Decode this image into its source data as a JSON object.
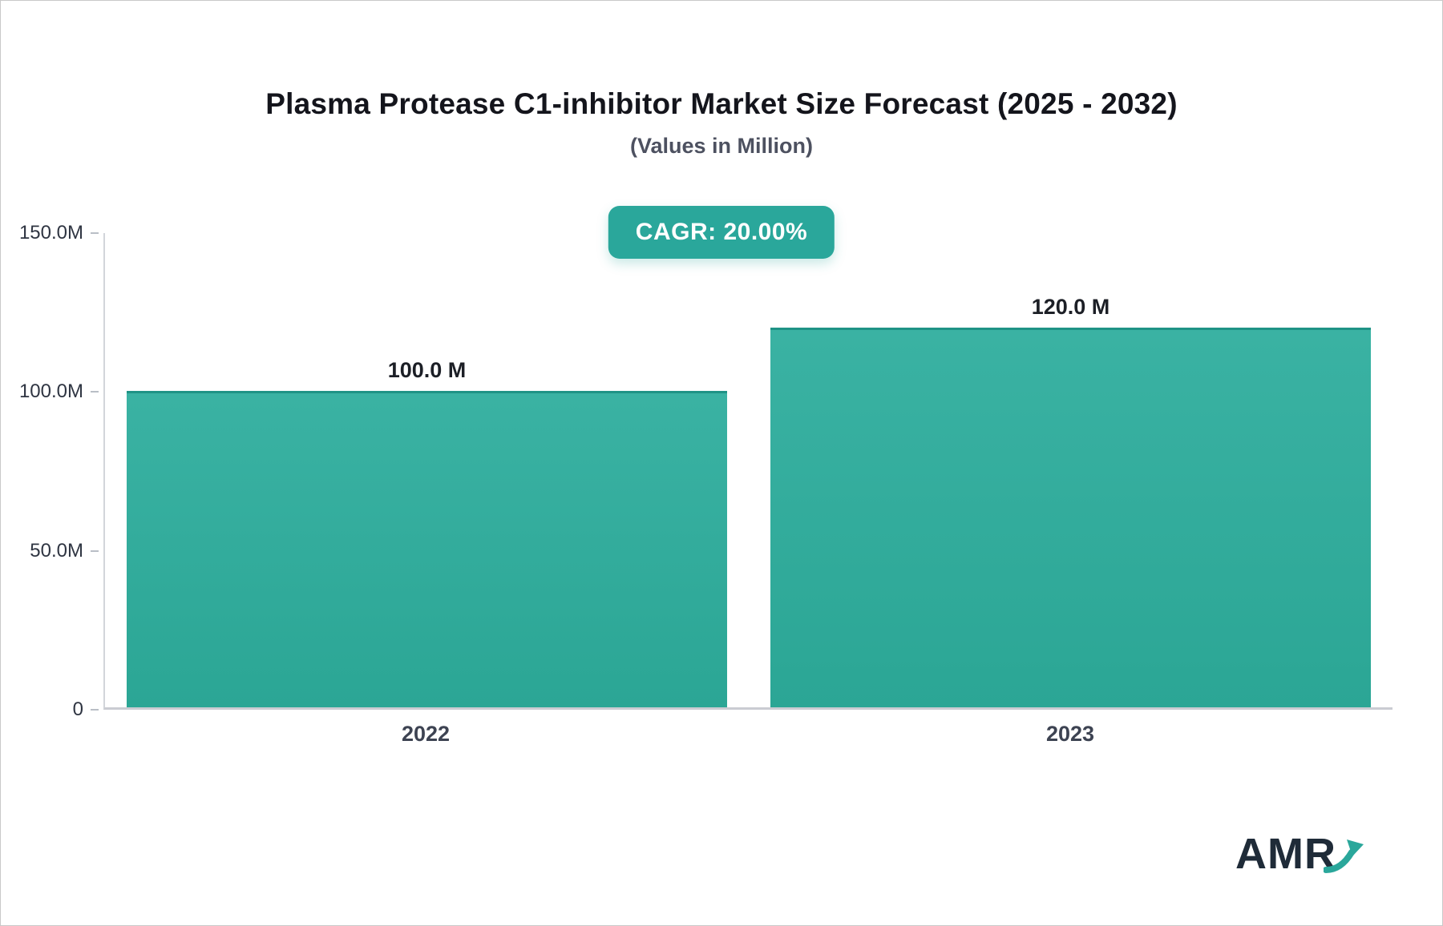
{
  "chart_data": {
    "type": "bar",
    "title": "Plasma Protease C1-inhibitor Market Size Forecast (2025 - 2032)",
    "subtitle": "(Values in Million)",
    "annotation": "CAGR: 20.00%",
    "categories": [
      "2022",
      "2023"
    ],
    "values": [
      100.0,
      120.0
    ],
    "value_labels": [
      "100.0 M",
      "120.0 M"
    ],
    "ylim": [
      0,
      150
    ],
    "y_ticks": [
      {
        "label": "150.0M",
        "value": 150
      },
      {
        "label": "100.0M",
        "value": 100
      },
      {
        "label": "50.0M",
        "value": 50
      },
      {
        "label": "0",
        "value": 0
      }
    ],
    "xlabel": "",
    "ylabel": "",
    "grid": false,
    "legend": "none",
    "bar_gradient_top": "#3ab2a3",
    "bar_gradient_bottom": "#2ba695"
  },
  "colors": {
    "accent": "#2aa79b",
    "title_text": "#14151c",
    "subtitle_text": "#4d5160",
    "axis_line": "#caccd2",
    "tick_text": "#2f3542",
    "logo_text": "#1f2b38"
  },
  "branding": {
    "logo_text": "AMR"
  }
}
